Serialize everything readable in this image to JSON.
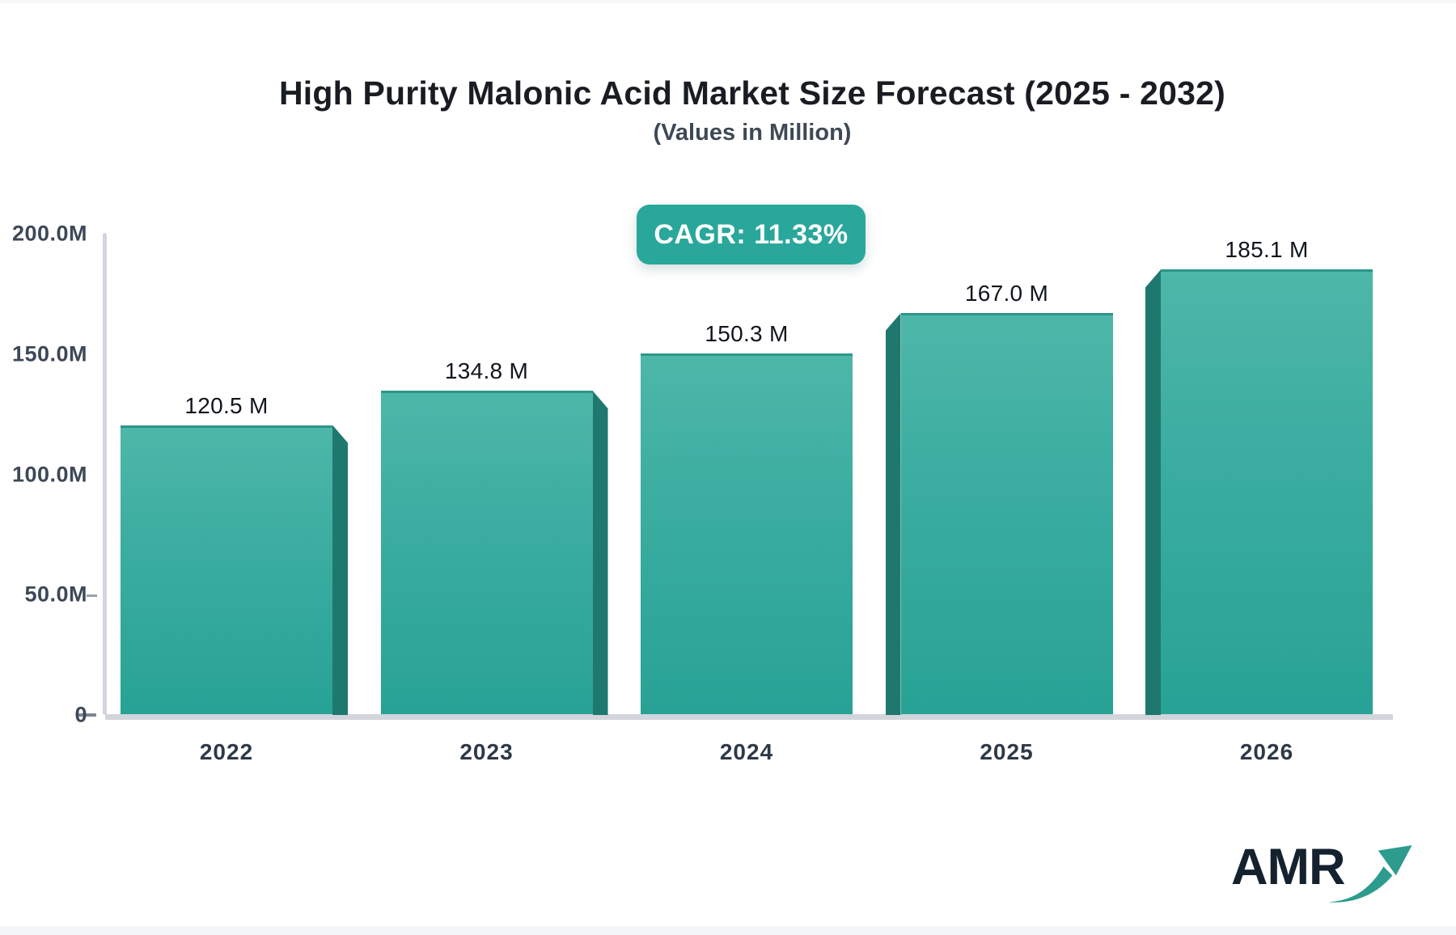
{
  "title": "High Purity Malonic Acid Market Size Forecast (2025 - 2032)",
  "subtitle": "(Values in Million)",
  "cagr_badge": "CAGR: 11.33%",
  "logo_text": "AMR",
  "icons": {
    "logo_arrow": "growth-arrow-icon"
  },
  "colors": {
    "badge_teal": "#2aa79b",
    "bar_gradient_top": "#4db7a9",
    "bar_gradient_bottom": "#28a296",
    "bar_side_dark": "#1f786e",
    "axis_gray": "#d3d5dc",
    "title_dark": "#191d23",
    "axis_label_slate": "#3d4857",
    "logo_navy": "#14212e",
    "logo_arrow_teal": "#2d9c8e"
  },
  "chart_data": {
    "type": "bar",
    "categories": [
      "2022",
      "2023",
      "2024",
      "2025",
      "2026"
    ],
    "values": [
      120.5,
      134.8,
      150.3,
      167.0,
      185.1
    ],
    "value_labels": [
      "120.5 M",
      "134.8 M",
      "150.3 M",
      "167.0 M",
      "185.1 M"
    ],
    "title": "High Purity Malonic Acid Market Size Forecast (2025 - 2032)",
    "subtitle": "(Values in Million)",
    "xlabel": "",
    "ylabel": "",
    "ylim": [
      0,
      200
    ],
    "y_ticks": [
      {
        "label": "200.0M",
        "value": 200
      },
      {
        "label": "150.0M",
        "value": 150
      },
      {
        "label": "100.0M",
        "value": 100
      },
      {
        "label": "50.0M",
        "value": 50
      },
      {
        "label": "0",
        "value": 0
      }
    ],
    "grid": false,
    "legend": false,
    "bar_style": "3d-beveled",
    "annotation": "CAGR: 11.33%"
  }
}
